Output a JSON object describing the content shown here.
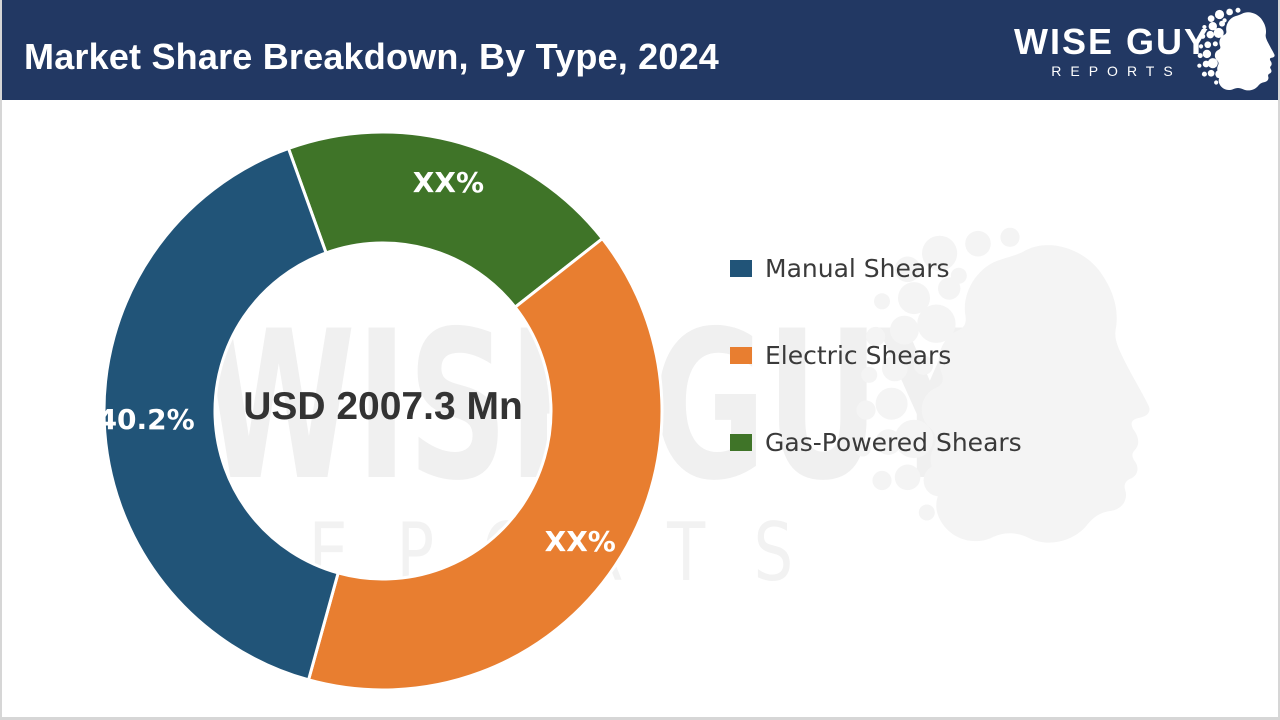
{
  "header": {
    "title": "Market Share Breakdown, By Type, 2024",
    "logo": {
      "line1": "WISE GUY",
      "line2": "REPORTS"
    }
  },
  "watermark": {
    "line1": "WISE GUY",
    "line2": "REPORTS"
  },
  "chart_data": {
    "type": "donut",
    "title": "Market Share Breakdown, By Type, 2024",
    "center_label": "USD 2007.3 Mn",
    "start_angle_deg": -19.8,
    "slices": [
      {
        "name": "Gas-Powered Shears",
        "value_label": "XX%",
        "pct_est": 19.9,
        "color": "#3F7428"
      },
      {
        "name": "Electric Shears",
        "value_label": "XX%",
        "pct_est": 39.9,
        "color": "#E87E30"
      },
      {
        "name": "Manual Shears",
        "value_label": "40.2%",
        "pct_est": 40.2,
        "color": "#215478"
      }
    ],
    "legend": [
      {
        "label": "Manual Shears",
        "color": "#215478"
      },
      {
        "label": "Electric Shears",
        "color": "#E87E30"
      },
      {
        "label": "Gas-Powered Shears",
        "color": "#3F7428"
      }
    ],
    "legend_position": "right",
    "colors": {
      "header_bg": "#223863",
      "center_text": "#333333",
      "slice_label_text": "#ffffff"
    }
  }
}
